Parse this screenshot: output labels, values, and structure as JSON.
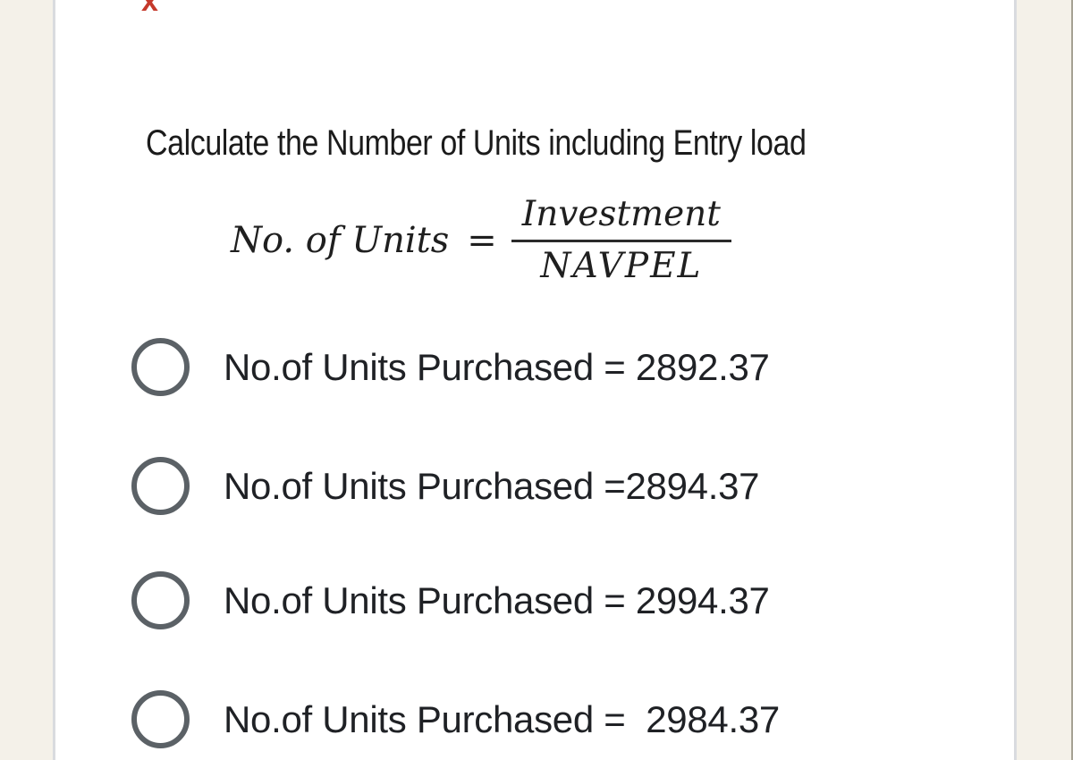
{
  "page": {
    "background_color": "#f4f1e9",
    "card_color": "#ffffff",
    "card_border_color": "#d9dbdf",
    "edge_line_color": "#a6a294"
  },
  "close_marker": {
    "glyph": "x",
    "color": "#c5392b"
  },
  "question": {
    "title": "Calculate the Number of Units including Entry load",
    "formula": {
      "lhs": "No. of Units",
      "equals": "=",
      "numerator": "Investment",
      "denominator": "NAVPEL"
    }
  },
  "options": [
    {
      "label": "No.of Units Purchased = 2892.37",
      "selected": false
    },
    {
      "label": "No.of Units Purchased =2894.37",
      "selected": false
    },
    {
      "label": "No.of Units Purchased = 2994.37",
      "selected": false
    },
    {
      "label": "No.of Units Purchased =  2984.37",
      "selected": false
    }
  ]
}
